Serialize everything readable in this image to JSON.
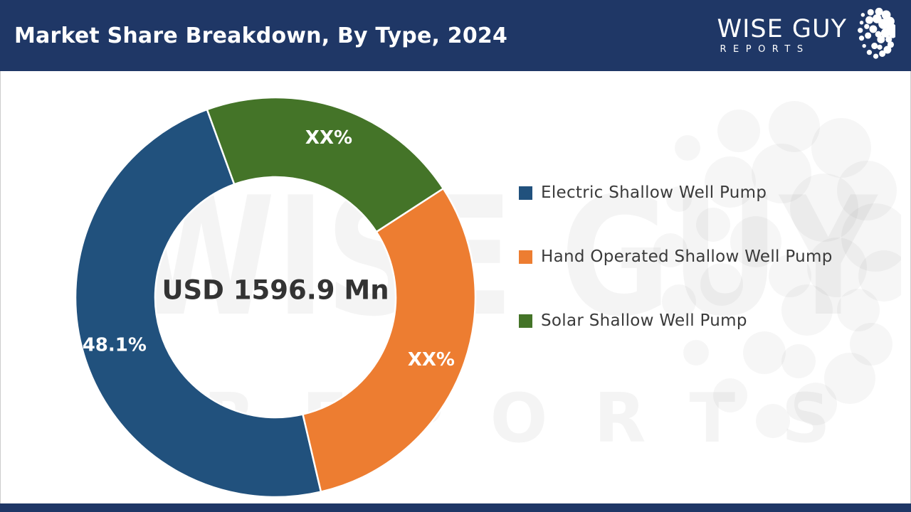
{
  "header": {
    "title": "Market Share Breakdown, By Type, 2024",
    "logo": {
      "line1": "WISE GUY",
      "line2": "REPORTS"
    }
  },
  "watermark": {
    "line1": "WISE GUY",
    "line2": "REPORTS"
  },
  "chart_data": {
    "type": "pie",
    "subtype": "donut",
    "title": "Market Share Breakdown, By Type, 2024",
    "center_label": "USD 1596.9 Mn",
    "donut_hole_ratio": 0.6,
    "start_angle_deg": 110,
    "direction": "counterclockwise",
    "legend_position": "right",
    "segments": [
      {
        "label": "Electric Shallow Well Pump",
        "display_value": "48.1%",
        "value_pct": 48.1,
        "color": "#21517D"
      },
      {
        "label": "Hand Operated Shallow Well Pump",
        "display_value": "XX%",
        "value_pct": 30.5,
        "color": "#ED7D31"
      },
      {
        "label": "Solar Shallow Well Pump",
        "display_value": "XX%",
        "value_pct": 21.4,
        "color": "#447428"
      }
    ]
  },
  "colors": {
    "header_bg": "#1F3766",
    "footer_bg": "#1F3766",
    "title_text": "#FFFFFF",
    "center_text": "#333333",
    "legend_text": "#3A3A3A",
    "slice_label_text": "#FFFFFF"
  }
}
